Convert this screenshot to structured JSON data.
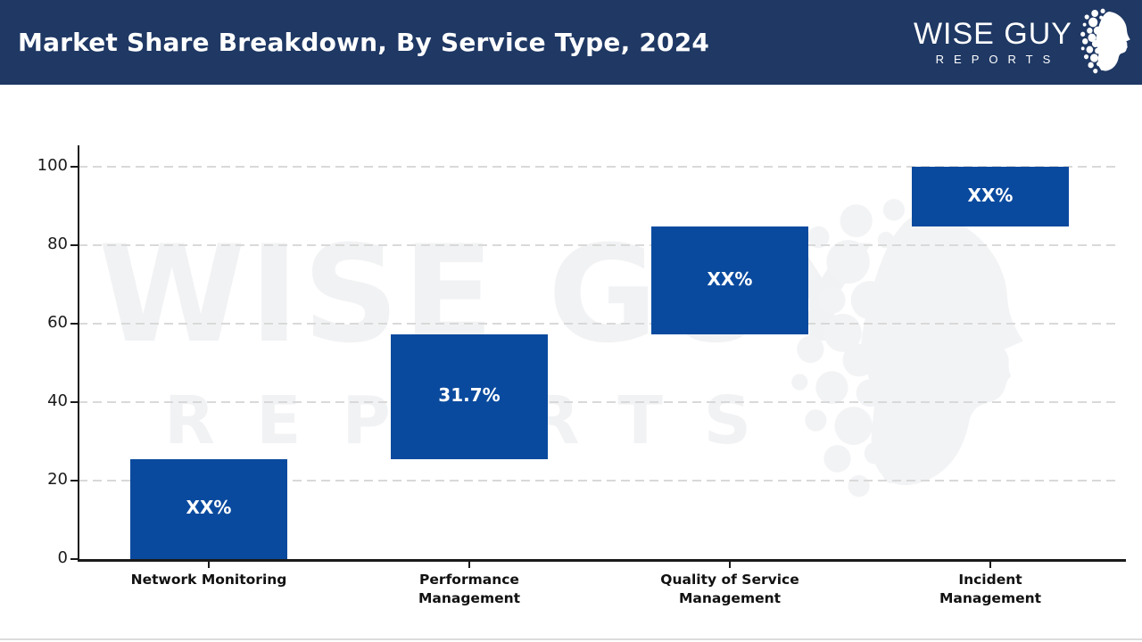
{
  "header": {
    "title": "Market Share Breakdown, By Service Type, 2024",
    "logo": {
      "wordmark": "WISE GUY",
      "subtitle": "REPORTS"
    }
  },
  "watermark": {
    "wordmark": "WISE GUY",
    "subtitle": "REPORTS"
  },
  "chart_data": {
    "type": "bar",
    "variant": "floating-waterfall",
    "title": "Market Share Breakdown, By Service Type, 2024",
    "categories": [
      "Network Monitoring",
      "Performance Management",
      "Quality of Service Management",
      "Incident Management"
    ],
    "bars": [
      {
        "category": "Network Monitoring",
        "display": "Network Monitoring",
        "from": 0,
        "to": 25.5,
        "label": "XX%"
      },
      {
        "category": "Performance Management",
        "display": "Performance\nManagement",
        "from": 25.5,
        "to": 57.2,
        "label": "31.7%"
      },
      {
        "category": "Quality of Service Management",
        "display": "Quality of Service\nManagement",
        "from": 57.2,
        "to": 84.7,
        "label": "XX%"
      },
      {
        "category": "Incident Management",
        "display": "Incident\nManagement",
        "from": 84.7,
        "to": 100,
        "label": "XX%"
      }
    ],
    "xlabel": "",
    "ylabel": "",
    "ylim": [
      0,
      100
    ],
    "yticks": [
      0,
      20,
      40,
      60,
      80,
      100
    ],
    "grid": "horizontal-dashed",
    "legend": null
  },
  "colors": {
    "header_bg": "#1f3864",
    "bar": "#0a4a9e",
    "bar_label": "#ffffff",
    "grid": "#d9d9d9",
    "axis": "#1a1a1a",
    "watermark": "#f1f2f4",
    "title_text": "#ffffff"
  }
}
